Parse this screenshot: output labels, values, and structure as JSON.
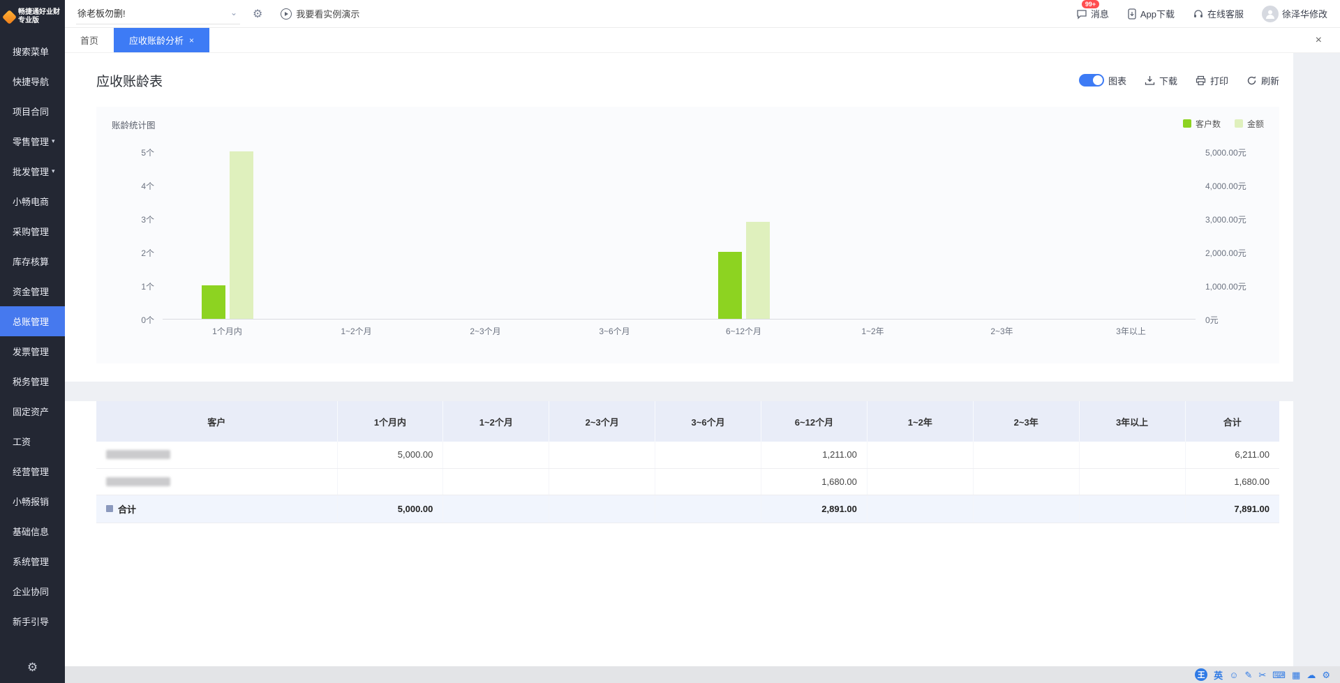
{
  "app": {
    "logo_title": "畅捷通好业财",
    "logo_subtitle": "专业版"
  },
  "icons": {
    "gear": "⚙",
    "caret_down": "▾",
    "chevron_down": "⌄",
    "close": "×",
    "refresh": "⟳",
    "smiley": "☺",
    "pen": "✎",
    "scissors": "✂",
    "keyboard": "⌨",
    "grid": "▦",
    "cloud": "☁"
  },
  "topbar": {
    "org_selector": "徐老板勿删!",
    "demo_link": "我要看实例演示",
    "messages_label": "消息",
    "messages_badge": "99+",
    "app_download_label": "App下载",
    "support_label": "在线客服",
    "user_name": "徐泽华修改"
  },
  "tabs": [
    {
      "label": "首页",
      "active": false,
      "closable": false
    },
    {
      "label": "应收账龄分析",
      "active": true,
      "closable": true
    }
  ],
  "sidebar": {
    "items": [
      {
        "label": "搜索菜单"
      },
      {
        "label": "快捷导航"
      },
      {
        "label": "项目合同"
      },
      {
        "label": "零售管理",
        "caret": true
      },
      {
        "label": "批发管理",
        "caret": true
      },
      {
        "label": "小畅电商"
      },
      {
        "label": "采购管理"
      },
      {
        "label": "库存核算"
      },
      {
        "label": "资金管理"
      },
      {
        "label": "总账管理",
        "active": true
      },
      {
        "label": "发票管理"
      },
      {
        "label": "税务管理"
      },
      {
        "label": "固定资产"
      },
      {
        "label": "工资"
      },
      {
        "label": "经营管理"
      },
      {
        "label": "小畅报销"
      },
      {
        "label": "基础信息"
      },
      {
        "label": "系统管理"
      },
      {
        "label": "企业协同"
      },
      {
        "label": "新手引导"
      }
    ]
  },
  "page": {
    "title": "应收账龄表",
    "tools": {
      "chart_toggle_label": "图表",
      "download_label": "下载",
      "print_label": "打印",
      "refresh_label": "刷新"
    }
  },
  "chart_data": {
    "type": "bar",
    "title": "账龄统计图",
    "categories": [
      "1个月内",
      "1~2个月",
      "2~3个月",
      "3~6个月",
      "6~12个月",
      "1~2年",
      "2~3年",
      "3年以上"
    ],
    "series": [
      {
        "name": "客户数",
        "axis": "left",
        "color": "#8dd321",
        "values": [
          1,
          0,
          0,
          0,
          2,
          0,
          0,
          0
        ]
      },
      {
        "name": "金额",
        "axis": "right",
        "color": "#dff0bd",
        "values": [
          5000,
          0,
          0,
          0,
          2891,
          0,
          0,
          0
        ]
      }
    ],
    "left_axis": {
      "ticks": [
        "5个",
        "4个",
        "3个",
        "2个",
        "1个",
        "0个"
      ],
      "max": 5,
      "min": 0
    },
    "right_axis": {
      "ticks": [
        "5,000.00元",
        "4,000.00元",
        "3,000.00元",
        "2,000.00元",
        "1,000.00元",
        "0元"
      ],
      "max": 5000,
      "min": 0
    },
    "legend_position": "top-right",
    "grid": false
  },
  "table": {
    "headers": [
      "客户",
      "1个月内",
      "1~2个月",
      "2~3个月",
      "3~6个月",
      "6~12个月",
      "1~2年",
      "2~3年",
      "3年以上",
      "合计"
    ],
    "rows": [
      {
        "customer": "",
        "redacted": true,
        "values": [
          "5,000.00",
          "",
          "",
          "",
          "1,211.00",
          "",
          "",
          "",
          "6,211.00"
        ]
      },
      {
        "customer": "",
        "redacted": true,
        "values": [
          "",
          "",
          "",
          "",
          "1,680.00",
          "",
          "",
          "",
          "1,680.00"
        ]
      }
    ],
    "total": {
      "label": "合计",
      "values": [
        "5,000.00",
        "",
        "",
        "",
        "2,891.00",
        "",
        "",
        "",
        "7,891.00"
      ]
    }
  },
  "ime_bar": {
    "logo": "王",
    "lang": "英"
  },
  "colors": {
    "accent_blue": "#3d7bf5",
    "sidebar_bg": "#232733",
    "sidebar_active": "#4679ee",
    "bar_customers": "#8dd321",
    "bar_amount": "#dff0bd",
    "table_header_bg": "#e9edf8",
    "badge_red": "#ff4d4f"
  }
}
